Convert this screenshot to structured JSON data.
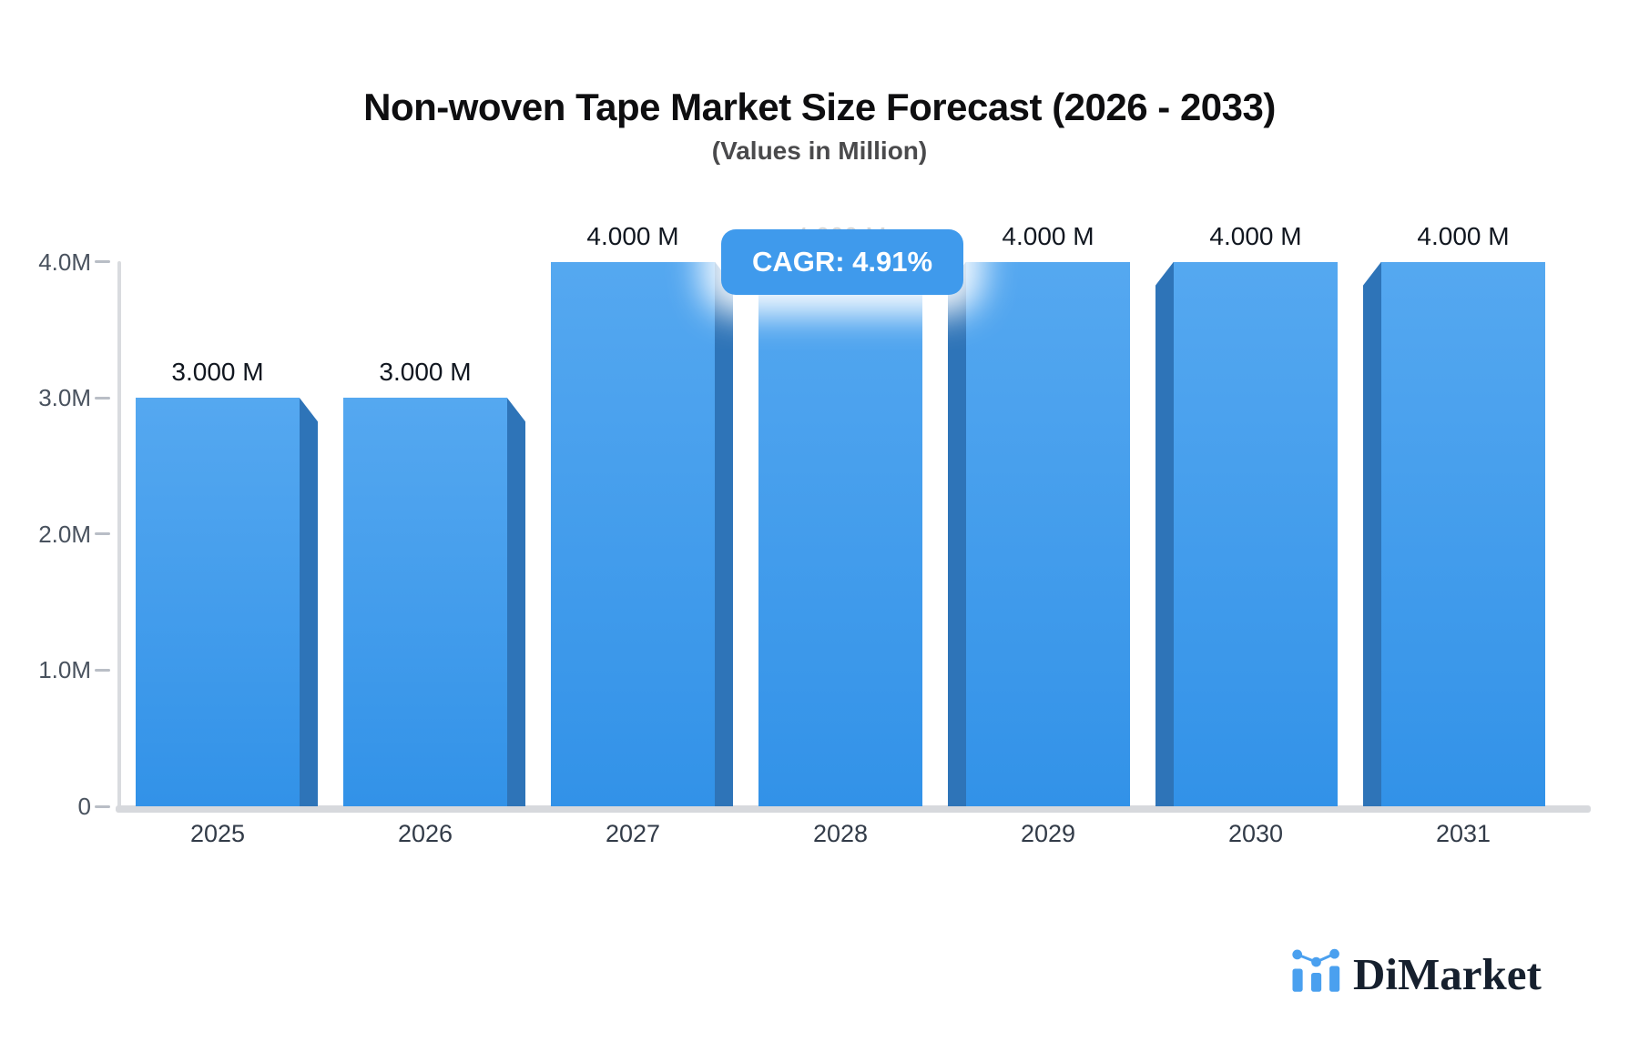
{
  "title": "Non-woven Tape Market Size Forecast (2026 - 2033)",
  "subtitle": "(Values in Million)",
  "annotation": {
    "cagr_label": "CAGR: 4.91%"
  },
  "logo": {
    "text": "DiMarket",
    "icon": "bar-chart-icon"
  },
  "colors": {
    "bar_face_top": "#55a8f0",
    "bar_face_bottom": "#3292e8",
    "bar_side": "#2e74b8",
    "badge_blue": "#3f9aec",
    "axis_gray": "#d9dbdf",
    "logo_blue": "#4aa0ef",
    "logo_navy": "#16202e"
  },
  "chart_data": {
    "type": "bar",
    "categories": [
      "2025",
      "2026",
      "2027",
      "2028",
      "2029",
      "2030",
      "2031"
    ],
    "values": [
      3,
      3,
      4,
      4,
      4,
      4,
      4
    ],
    "value_labels": [
      "3.000 M",
      "3.000 M",
      "4.000 M",
      "4.000 M",
      "4.000 M",
      "4.000 M",
      "4.000 M"
    ],
    "title": "Non-woven Tape Market Size Forecast (2026 - 2033)",
    "subtitle": "(Values in Million)",
    "xlabel": "",
    "ylabel": "",
    "unit": "Million",
    "ylim": [
      0,
      4.3
    ],
    "y_tick_values": [
      4,
      3,
      2,
      1,
      0
    ],
    "y_tick_labels": [
      "4.0M",
      "3.0M",
      "2.0M",
      "1.0M",
      "0"
    ],
    "grid": false,
    "legend": false,
    "annotation": "CAGR: 4.91%",
    "style": "3d-extruded-bars, perspective toward center"
  }
}
